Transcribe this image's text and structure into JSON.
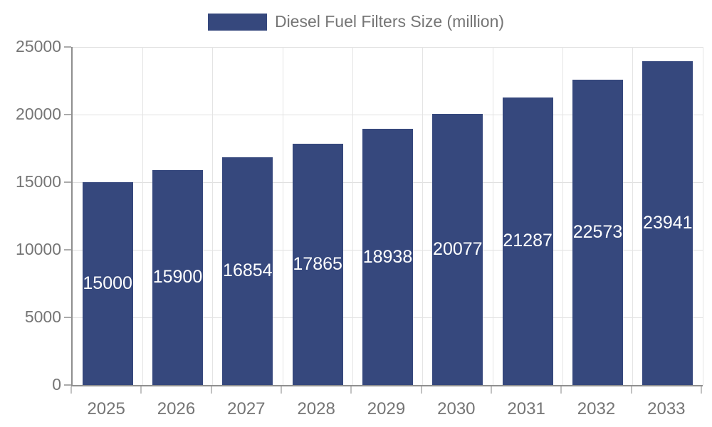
{
  "legend": {
    "label": "Diesel Fuel Filters Size (million)"
  },
  "chart_data": {
    "type": "bar",
    "title": "Diesel Fuel Filters Size (million)",
    "categories": [
      "2025",
      "2026",
      "2027",
      "2028",
      "2029",
      "2030",
      "2031",
      "2032",
      "2033"
    ],
    "values": [
      15000,
      15900,
      16854,
      17865,
      18938,
      20077,
      21287,
      22573,
      23941
    ],
    "xlabel": "",
    "ylabel": "",
    "ylim": [
      0,
      25000
    ],
    "yticks": [
      0,
      5000,
      10000,
      15000,
      20000,
      25000
    ],
    "grid": true,
    "legend_position": "top",
    "bar_labels_inside": true
  },
  "colors": {
    "bar": "#36487d",
    "bar_label": "#ffffff",
    "axis_text": "#757575",
    "gridline": "#e0e0e0",
    "axis_line": "#8f8f8f"
  }
}
